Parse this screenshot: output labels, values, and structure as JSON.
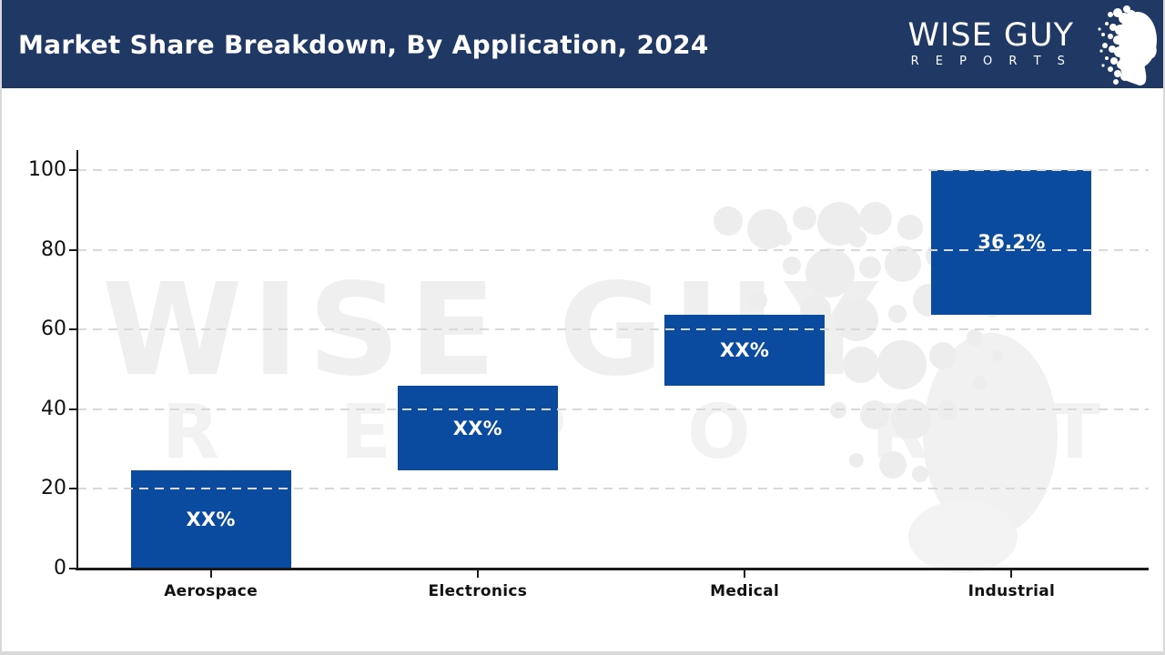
{
  "header": {
    "title": "Market Share Breakdown, By Application, 2024",
    "bg_color": "#1f3864",
    "logo": {
      "line1": "WISE GUY",
      "line2": "R E P O R T S"
    }
  },
  "watermark": {
    "line1": "WISE GUY",
    "line2": "R E P O R T S"
  },
  "chart_data": {
    "type": "bar",
    "subtype": "floating-waterfall",
    "title": "Market Share Breakdown, By Application, 2024",
    "categories": [
      "Aerospace",
      "Electronics",
      "Medical",
      "Industrial"
    ],
    "segments": [
      {
        "category": "Aerospace",
        "start": 0,
        "end": 24.6,
        "value_label": "XX%"
      },
      {
        "category": "Electronics",
        "start": 24.6,
        "end": 45.9,
        "value_label": "XX%"
      },
      {
        "category": "Medical",
        "start": 45.9,
        "end": 63.8,
        "value_label": "XX%"
      },
      {
        "category": "Industrial",
        "start": 63.8,
        "end": 100,
        "value_label": "36.2%"
      }
    ],
    "yticks": [
      0,
      20,
      40,
      60,
      80,
      100
    ],
    "ylim": [
      0,
      105
    ],
    "xlabel": "",
    "ylabel": "",
    "bar_color": "#0b4b9f",
    "bar_label_color": "#ffffff",
    "grid": {
      "horizontal": true,
      "style": "dashed",
      "color": "#d9d9d9",
      "above_bars": true
    },
    "legend": "none"
  }
}
